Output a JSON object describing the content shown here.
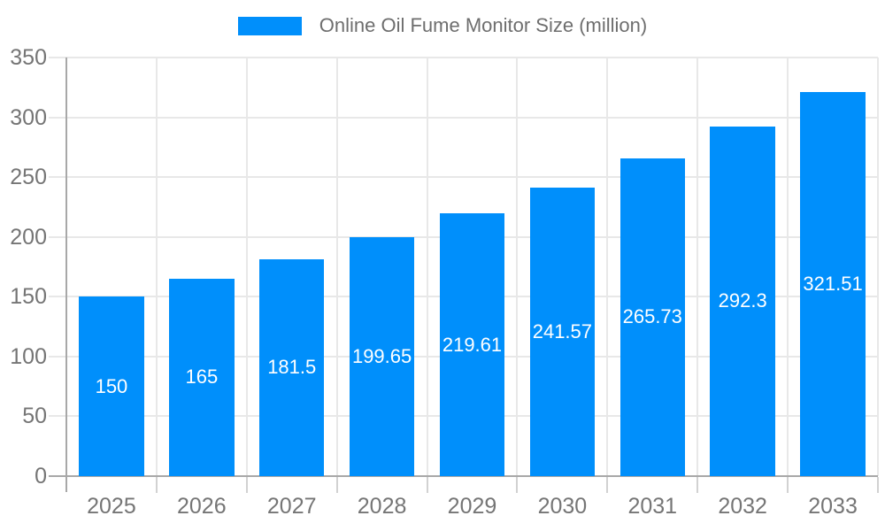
{
  "chart_data": {
    "type": "bar",
    "title": "Online Oil Fume Monitor Size (million)",
    "categories": [
      "2025",
      "2026",
      "2027",
      "2028",
      "2029",
      "2030",
      "2031",
      "2032",
      "2033"
    ],
    "values": [
      150,
      165,
      181.5,
      199.65,
      219.61,
      241.57,
      265.73,
      292.3,
      321.51
    ],
    "value_labels": [
      "150",
      "165",
      "181.5",
      "199.65",
      "219.61",
      "241.57",
      "265.73",
      "292.3",
      "321.51"
    ],
    "xlabel": "",
    "ylabel": "",
    "ylim": [
      0,
      350
    ],
    "yticks": [
      0,
      50,
      100,
      150,
      200,
      250,
      300,
      350
    ],
    "grid": "on",
    "legend_position": "top-center",
    "value_label_position": "inside-center",
    "colors": {
      "bar": "#008FFB",
      "value_label": "#FFFFFF",
      "axis_line": "#A8A8A8",
      "gridline": "#E8E8E8",
      "tick": "#D2D2D2",
      "tick_label": "#757575",
      "title": "#6E6E6E",
      "background": "#FFFFFF"
    }
  }
}
